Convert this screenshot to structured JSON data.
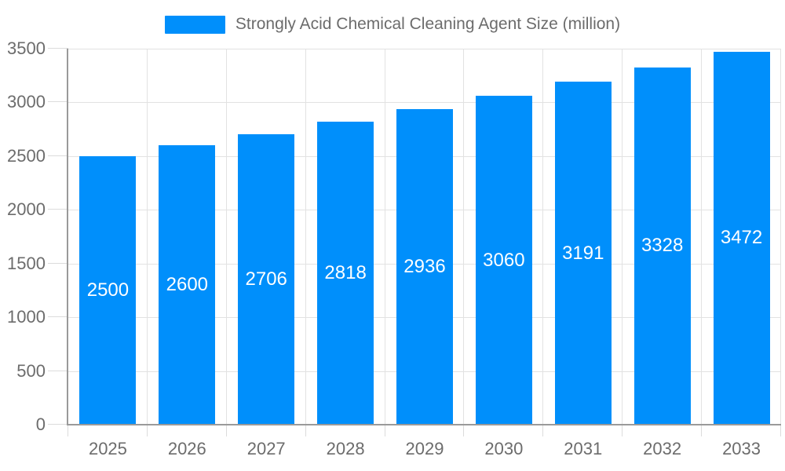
{
  "chart_data": {
    "type": "bar",
    "title": "Strongly Acid Chemical Cleaning Agent Size (million)",
    "legend_entries": [
      "Strongly Acid Chemical Cleaning Agent Size (million)"
    ],
    "legend_position": "top",
    "categories": [
      "2025",
      "2026",
      "2027",
      "2028",
      "2029",
      "2030",
      "2031",
      "2032",
      "2033"
    ],
    "series": [
      {
        "name": "Strongly Acid Chemical Cleaning Agent Size (million)",
        "values": [
          2500,
          2600,
          2706,
          2818,
          2936,
          3060,
          3191,
          3328,
          3472
        ]
      }
    ],
    "xlabel": "",
    "ylabel": "",
    "ylim": [
      0,
      3500
    ],
    "yticks": [
      0,
      500,
      1000,
      1500,
      2000,
      2500,
      3000,
      3500
    ],
    "grid": true,
    "colors": {
      "bar": "#008FFB",
      "data_label": "#ffffff",
      "axis_text": "#6c6c6c",
      "grid_line": "#e2e2e2",
      "tick_line": "#dcdcdc",
      "axis_line": "#9a9a9a",
      "background": "#ffffff"
    }
  }
}
